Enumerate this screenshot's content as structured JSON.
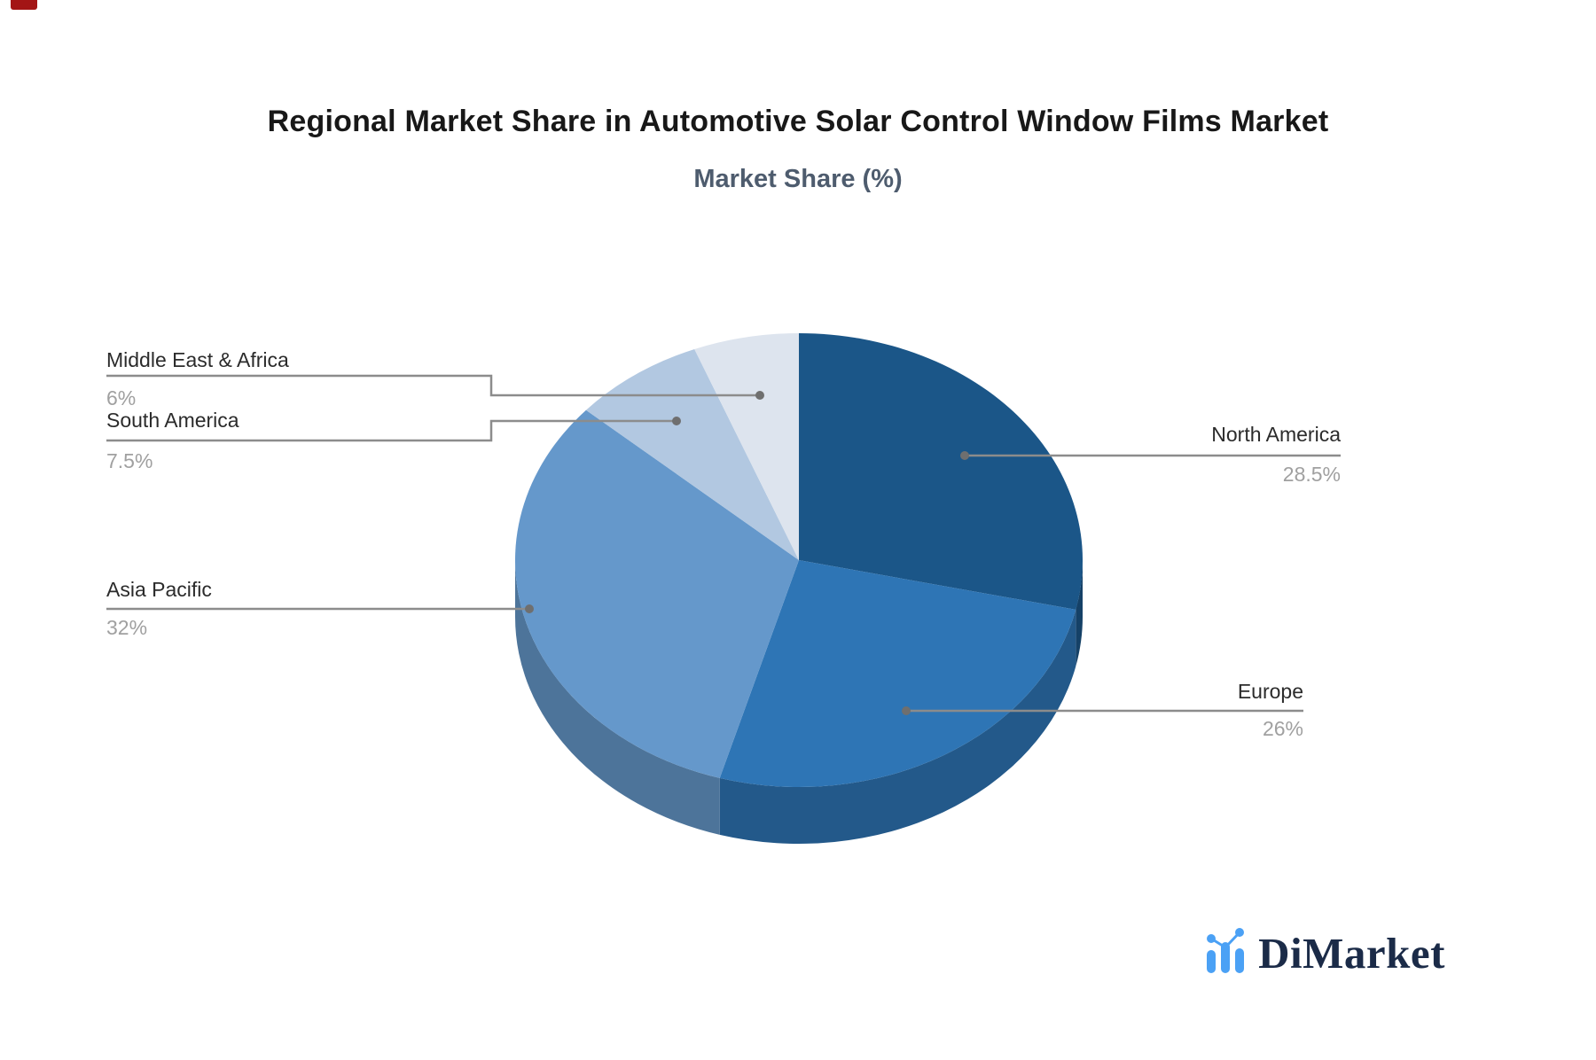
{
  "header": {
    "title": "Regional Market Share in Automotive Solar Control Window Films Market",
    "subtitle": "Market Share (%)"
  },
  "chart_data": {
    "type": "pie",
    "title": "Regional Market Share in Automotive Solar Control Window Films Market",
    "subtitle": "Market Share (%)",
    "unit": "%",
    "style": "3d-pie, labels with leader lines, no legend, starts at 12 o'clock clockwise",
    "slices": [
      {
        "label": "North America",
        "value": 28.5,
        "display": "28.5%",
        "color": "#1b5688"
      },
      {
        "label": "Europe",
        "value": 26,
        "display": "26%",
        "color": "#2e75b5"
      },
      {
        "label": "Asia Pacific",
        "value": 32,
        "display": "32%",
        "color": "#6598cb"
      },
      {
        "label": "South America",
        "value": 7.5,
        "display": "7.5%",
        "color": "#b2c8e1"
      },
      {
        "label": "Middle East & Africa",
        "value": 6,
        "display": "6%",
        "color": "#dde4ee"
      }
    ],
    "leader_line_color": "#8c8c8c",
    "label_color": "#2b2b2b",
    "value_color": "#a0a0a0"
  },
  "logo": {
    "text": "DiMarket",
    "icon": "bar-line-chart-icon",
    "text_color": "#1b2b48",
    "accent_color": "#4ba1f5"
  }
}
